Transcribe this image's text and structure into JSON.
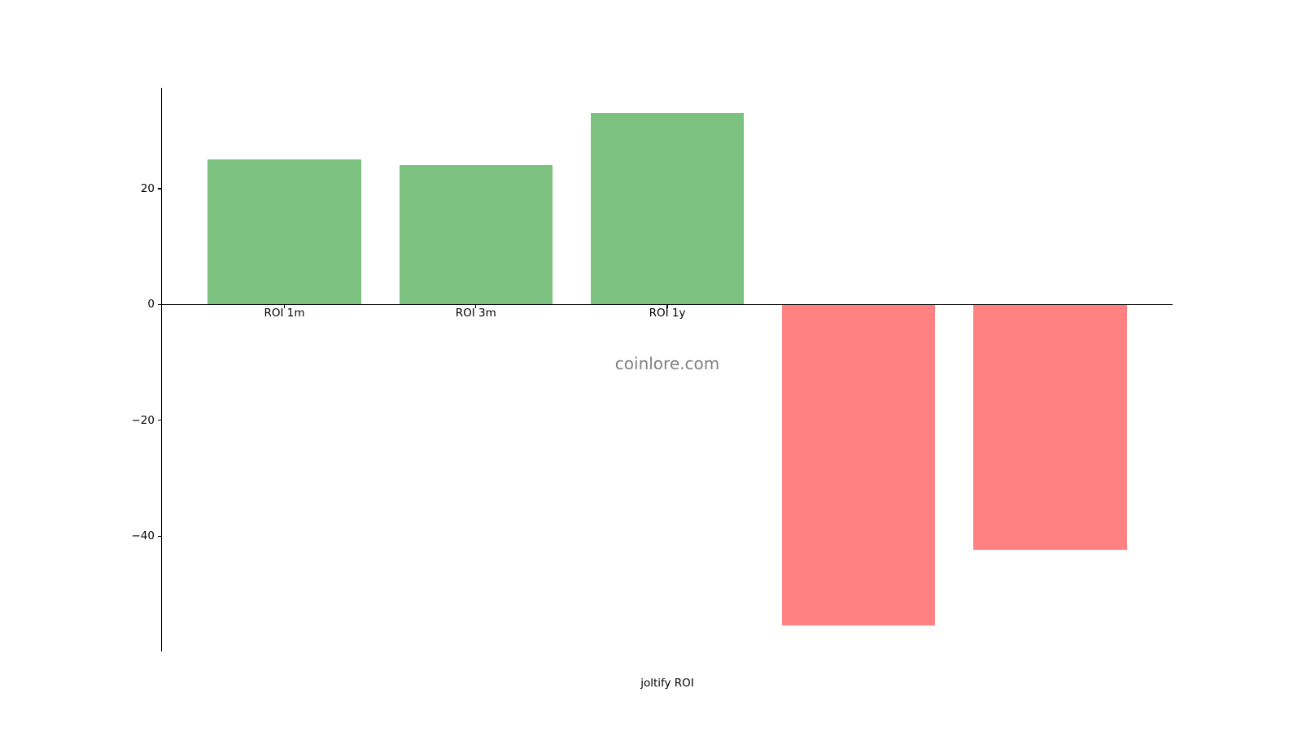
{
  "chart_data": {
    "type": "bar",
    "title": "",
    "xlabel": "joltify ROI",
    "ylabel": "",
    "categories": [
      "ROI 1m",
      "ROI 3m",
      "ROI 1y",
      "",
      ""
    ],
    "values": [
      25,
      24,
      33,
      -55.3,
      -42.2
    ],
    "series_note": "single series; last two category tick labels are hidden behind the negative bars",
    "yticks": [
      20,
      0,
      -20,
      -40
    ],
    "ylim": [
      -59.9,
      37.4
    ],
    "xlim": [
      -0.64,
      4.64
    ],
    "bar_width_units": 0.8,
    "grid": false,
    "legend": null,
    "colors": {
      "positive_bar": "#7cc17f",
      "negative_bar": "#ff8181",
      "axis": "#000000",
      "tick_label": "#000000",
      "watermark": "#808080"
    },
    "watermark": {
      "text": "coinlore.com"
    }
  }
}
